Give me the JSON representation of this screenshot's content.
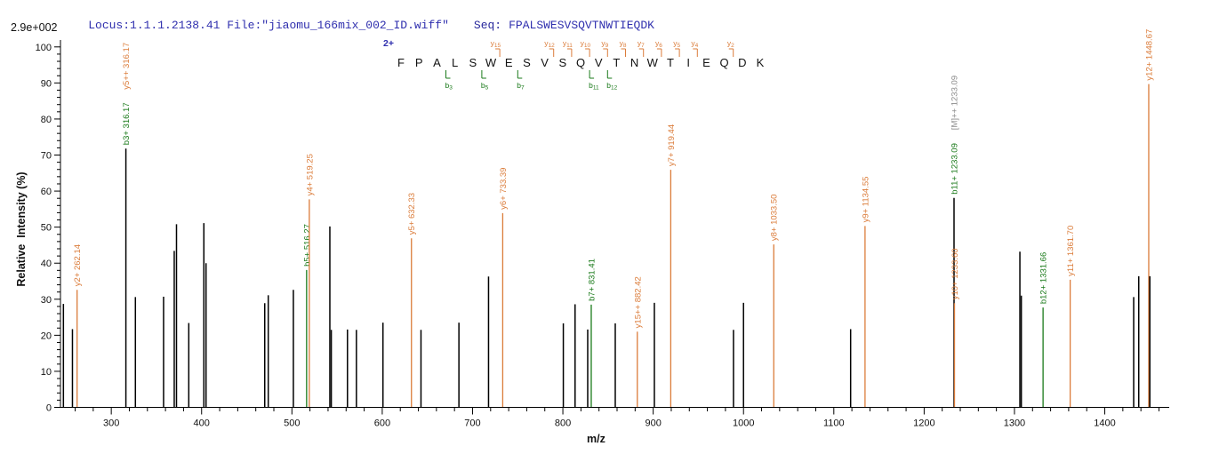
{
  "header": {
    "locus_file": "Locus:1.1.1.2138.41 File:\"jiaomu_166mix_002_ID.wiff\"",
    "seq_label": "Seq:",
    "sequence": "FPALSWESVSQVTNWTIEQDK"
  },
  "colors": {
    "y_ion": "#DB7C3A",
    "b_ion": "#1A7A1A",
    "peak_black": "#000000",
    "precursor_gray": "#8C8C8C",
    "header_blue": "#2F2FAE",
    "axis_black": "#000000"
  },
  "chart_data": {
    "type": "bar",
    "subtype": "mass-spectrum-sticks",
    "title": "",
    "xlabel": "m/z",
    "ylabel": "Relative  Intensity (%)",
    "max_intensity_label": "2.9e+002",
    "xlim": [
      243,
      1472
    ],
    "ylim": [
      0,
      100
    ],
    "x_major_ticks": [
      300,
      400,
      500,
      600,
      700,
      800,
      900,
      1000,
      1100,
      1200,
      1300,
      1400
    ],
    "x_minor_step": 20,
    "y_major_ticks": [
      0,
      10,
      20,
      30,
      40,
      50,
      60,
      70,
      80,
      90,
      100
    ],
    "y_minor_step": 2,
    "grid": false,
    "legend": false,
    "peptide": {
      "charge_label": "2+",
      "sequence": "FPALSWESVSQVTNWTIEQDK",
      "y_ions": [
        15,
        12,
        11,
        10,
        9,
        8,
        7,
        6,
        5,
        4,
        2
      ],
      "b_ions": [
        3,
        5,
        7,
        11,
        12
      ]
    },
    "peaks": [
      {
        "mz": 247.0,
        "intensity": 28.7,
        "ion": "black"
      },
      {
        "mz": 257.0,
        "intensity": 21.7,
        "ion": "black"
      },
      {
        "mz": 262.14,
        "intensity": 32.6,
        "ion": "y",
        "labels": [
          {
            "text": "y2+ 262.14",
            "color": "y"
          }
        ]
      },
      {
        "mz": 316.17,
        "intensity": 71.8,
        "ion": "black",
        "labels": [
          {
            "text": "b3+ 316.17",
            "color": "b"
          },
          {
            "text": "y5++ 316.17",
            "color": "y"
          }
        ]
      },
      {
        "mz": 326.7,
        "intensity": 30.6,
        "ion": "black"
      },
      {
        "mz": 357.9,
        "intensity": 30.7,
        "ion": "black"
      },
      {
        "mz": 369.7,
        "intensity": 43.4,
        "ion": "black"
      },
      {
        "mz": 372.2,
        "intensity": 50.8,
        "ion": "black"
      },
      {
        "mz": 385.8,
        "intensity": 23.4,
        "ion": "black"
      },
      {
        "mz": 402.5,
        "intensity": 51.1,
        "ion": "black"
      },
      {
        "mz": 404.9,
        "intensity": 40.0,
        "ion": "black"
      },
      {
        "mz": 469.9,
        "intensity": 28.9,
        "ion": "black"
      },
      {
        "mz": 473.8,
        "intensity": 31.1,
        "ion": "black"
      },
      {
        "mz": 501.6,
        "intensity": 32.6,
        "ion": "black"
      },
      {
        "mz": 516.27,
        "intensity": 38.1,
        "ion": "b",
        "labels": [
          {
            "text": "b5+ 516.27",
            "color": "b"
          }
        ]
      },
      {
        "mz": 519.25,
        "intensity": 57.7,
        "ion": "y",
        "labels": [
          {
            "text": "y4+ 519.25",
            "color": "y"
          }
        ]
      },
      {
        "mz": 542.0,
        "intensity": 50.2,
        "ion": "black"
      },
      {
        "mz": 543.6,
        "intensity": 21.5,
        "ion": "black"
      },
      {
        "mz": 561.5,
        "intensity": 21.6,
        "ion": "black"
      },
      {
        "mz": 571.4,
        "intensity": 21.5,
        "ion": "black"
      },
      {
        "mz": 600.8,
        "intensity": 23.5,
        "ion": "black"
      },
      {
        "mz": 632.33,
        "intensity": 46.9,
        "ion": "y",
        "labels": [
          {
            "text": "y5+ 632.33",
            "color": "y"
          }
        ]
      },
      {
        "mz": 642.9,
        "intensity": 21.5,
        "ion": "black"
      },
      {
        "mz": 684.9,
        "intensity": 23.5,
        "ion": "black"
      },
      {
        "mz": 717.7,
        "intensity": 36.3,
        "ion": "black"
      },
      {
        "mz": 733.39,
        "intensity": 53.9,
        "ion": "y",
        "labels": [
          {
            "text": "y6+ 733.39",
            "color": "y"
          }
        ]
      },
      {
        "mz": 800.5,
        "intensity": 23.3,
        "ion": "black"
      },
      {
        "mz": 813.5,
        "intensity": 28.6,
        "ion": "black"
      },
      {
        "mz": 827.5,
        "intensity": 21.6,
        "ion": "black"
      },
      {
        "mz": 831.41,
        "intensity": 28.5,
        "ion": "b",
        "labels": [
          {
            "text": "b7+ 831.41",
            "color": "b"
          }
        ]
      },
      {
        "mz": 858.0,
        "intensity": 23.3,
        "ion": "black"
      },
      {
        "mz": 882.42,
        "intensity": 21.0,
        "ion": "y",
        "labels": [
          {
            "text": "y15++ 882.42",
            "color": "y"
          }
        ]
      },
      {
        "mz": 901.3,
        "intensity": 29.0,
        "ion": "black"
      },
      {
        "mz": 919.44,
        "intensity": 65.9,
        "ion": "y",
        "labels": [
          {
            "text": "y7+ 919.44",
            "color": "y"
          }
        ]
      },
      {
        "mz": 988.9,
        "intensity": 21.5,
        "ion": "black"
      },
      {
        "mz": 1000.0,
        "intensity": 29.0,
        "ion": "black"
      },
      {
        "mz": 1033.5,
        "intensity": 45.2,
        "ion": "y",
        "labels": [
          {
            "text": "y8+ 1033.50",
            "color": "y"
          }
        ]
      },
      {
        "mz": 1118.6,
        "intensity": 21.7,
        "ion": "black"
      },
      {
        "mz": 1134.55,
        "intensity": 50.3,
        "ion": "y",
        "labels": [
          {
            "text": "y9+ 1134.55",
            "color": "y"
          }
        ]
      },
      {
        "mz": 1233.09,
        "intensity": 58.1,
        "ion": "black",
        "labels": [
          {
            "text": "b11+ 1233.09",
            "color": "b"
          },
          {
            "text": "[M]++ 1233.09",
            "color": "m"
          }
        ]
      },
      {
        "mz": 1233.6,
        "intensity": 28.9,
        "ion": "y",
        "labels": [
          {
            "text": "y10+ 1233.60",
            "color": "y"
          }
        ]
      },
      {
        "mz": 1306.0,
        "intensity": 43.2,
        "ion": "black"
      },
      {
        "mz": 1307.6,
        "intensity": 31.0,
        "ion": "black"
      },
      {
        "mz": 1331.66,
        "intensity": 27.7,
        "ion": "b",
        "labels": [
          {
            "text": "b12+ 1331.66",
            "color": "b"
          }
        ]
      },
      {
        "mz": 1361.7,
        "intensity": 35.4,
        "ion": "y",
        "labels": [
          {
            "text": "y11+ 1361.70",
            "color": "y"
          }
        ]
      },
      {
        "mz": 1432.0,
        "intensity": 30.6,
        "ion": "black"
      },
      {
        "mz": 1437.6,
        "intensity": 36.4,
        "ion": "black"
      },
      {
        "mz": 1448.67,
        "intensity": 89.7,
        "ion": "y",
        "labels": [
          {
            "text": "y12+ 1448.67",
            "color": "y"
          }
        ]
      },
      {
        "mz": 1449.9,
        "intensity": 36.4,
        "ion": "black"
      }
    ]
  }
}
